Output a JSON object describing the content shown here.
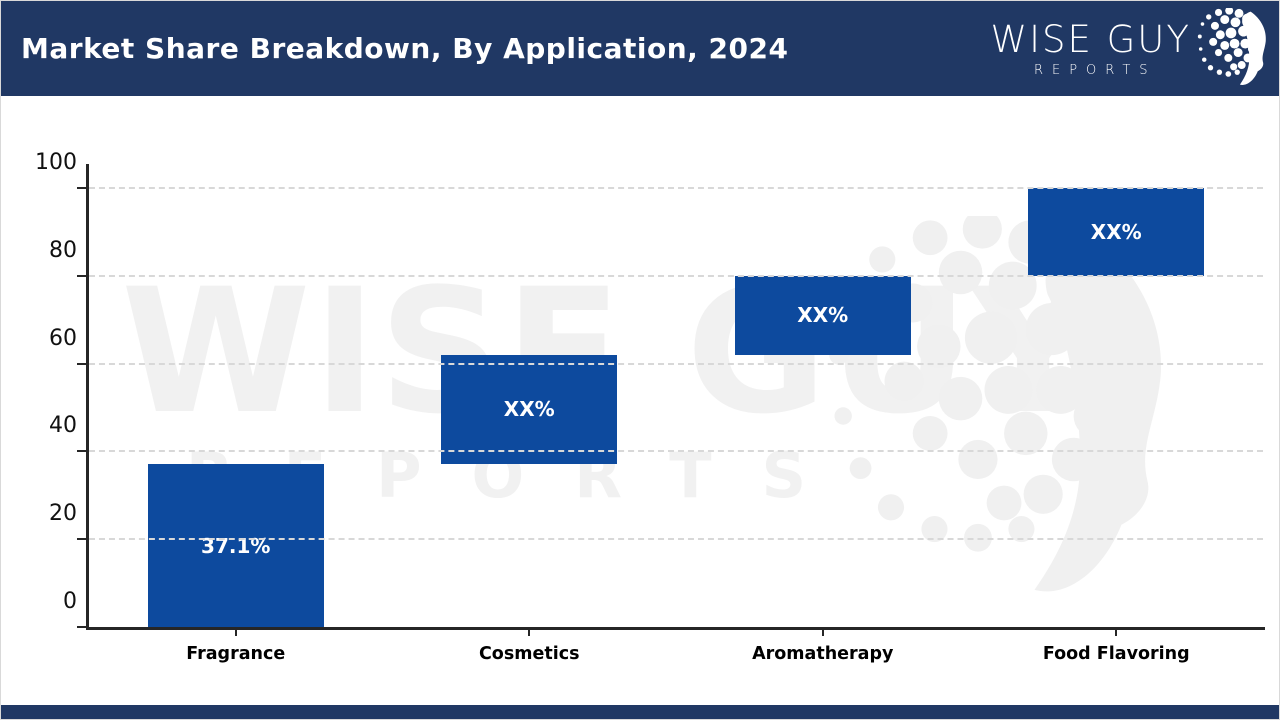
{
  "header": {
    "title": "Market Share Breakdown, By Application, 2024",
    "bg_color": "#203864",
    "logo": {
      "line1": "WISE GUY",
      "line2": "REPORTS"
    }
  },
  "watermark": {
    "line1": "WISE GUY",
    "line2": "REPORTS"
  },
  "chart_data": {
    "type": "bar",
    "subtype": "waterfall",
    "title": "Market Share Breakdown, By Application, 2024",
    "categories": [
      "Fragrance",
      "Cosmetics",
      "Aromatherapy",
      "Food Flavoring"
    ],
    "segments": [
      {
        "category": "Fragrance",
        "start": 0,
        "end": 37.1,
        "label": "37.1%"
      },
      {
        "category": "Cosmetics",
        "start": 37.1,
        "end": 62,
        "label": "XX%"
      },
      {
        "category": "Aromatherapy",
        "start": 62,
        "end": 80,
        "label": "XX%"
      },
      {
        "category": "Food Flavoring",
        "start": 80,
        "end": 100,
        "label": "XX%"
      }
    ],
    "yticks": [
      0,
      20,
      40,
      60,
      80,
      100
    ],
    "ylim": [
      0,
      105
    ],
    "grid": true,
    "gridline_color": "#d8d8d8",
    "bar_color": "#0d4a9e",
    "bar_label_color": "#ffffff",
    "legend": "none",
    "xlabel": "",
    "ylabel": ""
  }
}
